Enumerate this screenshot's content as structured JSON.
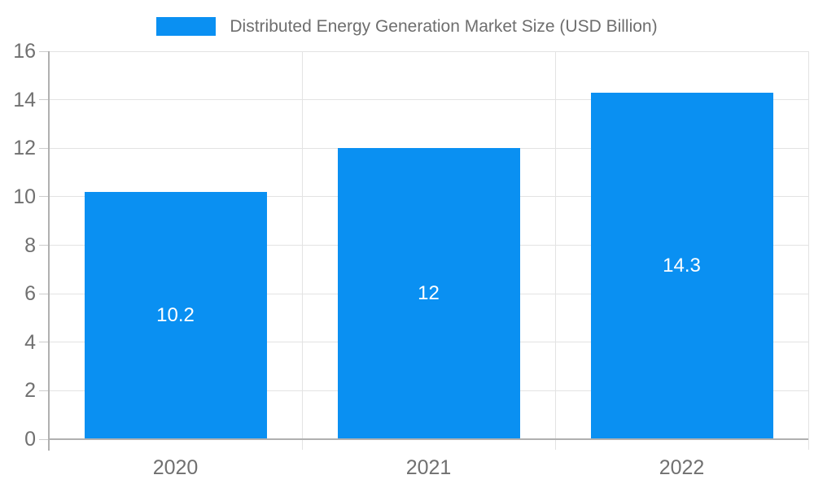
{
  "chart_data": {
    "type": "bar",
    "title": "Distributed Energy Generation Market Size (USD Billion)",
    "categories": [
      "2020",
      "2021",
      "2022"
    ],
    "values": [
      10.2,
      12,
      14.3
    ],
    "value_labels": [
      "10.2",
      "12",
      "14.3"
    ],
    "ylim": [
      0,
      16
    ],
    "yticks": [
      0,
      2,
      4,
      6,
      8,
      10,
      12,
      14,
      16
    ],
    "grid": true,
    "legend_position": "top",
    "xlabel": "",
    "ylabel": "",
    "colors": {
      "bar": "#0a90f2",
      "bar_label_text": "#ffffff",
      "axis_text": "#707070",
      "legend_text": "#6e6e6e",
      "gridline": "#e3e3e3",
      "tick": "#cccccc",
      "axis_line": "#b0b0b0",
      "background": "#ffffff"
    }
  }
}
